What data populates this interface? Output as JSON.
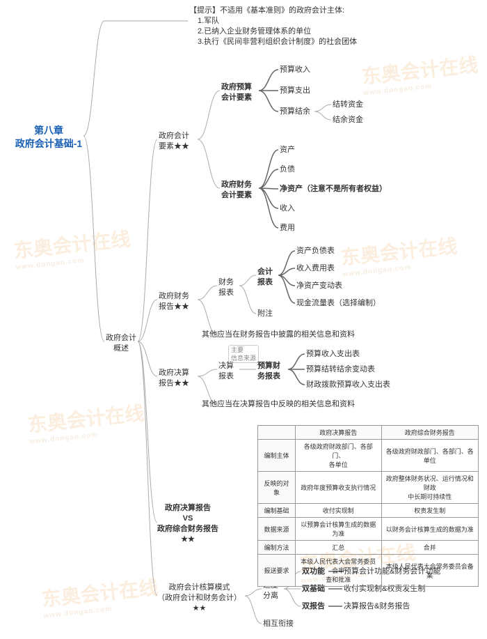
{
  "root": {
    "line1": "第八章",
    "line2": "政府会计基础-1"
  },
  "tip": {
    "head": "【提示】不适用《基本准则》的政府会计主体:",
    "l1": "1.军队",
    "l2": "2.已纳入企业财务管理体系的单位",
    "l3": "3.执行《民间非营利组织会计制度》的社会团体"
  },
  "overview": "政府会计\n概述",
  "elements": {
    "label": "政府会计\n要素★★",
    "budget": {
      "label": "政府预算\n会计要素",
      "items": [
        "预算收入",
        "预算支出",
        "预算结余"
      ],
      "carry": [
        "结转资金",
        "结余资金"
      ]
    },
    "finance": {
      "label": "政府财务\n会计要素",
      "items": [
        "资产",
        "负债",
        "净资产（注意不是所有者权益）",
        "收入",
        "费用"
      ]
    }
  },
  "finreport": {
    "label": "政府财务\n报告★★",
    "sub1": "财务\n报表",
    "acc": {
      "label": "会计\n报表",
      "items": [
        "资产负债表",
        "收入费用表",
        "净资产变动表",
        "现金流量表（选择编制）"
      ]
    },
    "notes": "附注",
    "other": "其他应当在财务报告中披露的相关信息和资料"
  },
  "budreport": {
    "label": "政府决算\n报告★★",
    "sub": "决算\n报表",
    "tag": "主要\n信息来源",
    "core": {
      "label": "预算财\n务报表",
      "items": [
        "预算收入支出表",
        "预算结转结余变动表",
        "财政拨款预算收入支出表"
      ]
    },
    "other": "其他应当在决算报告中反映的相关信息和资料"
  },
  "vs": {
    "label": "政府决算报告\nVS\n政府综合财务报告\n★★"
  },
  "model": {
    "label": "政府会计核算模式\n（政府会计和财务会计）\n★★",
    "moderate": "适度\n分离",
    "threes": [
      {
        "k": "双功能",
        "v": "预算会计功能&财务会计功能"
      },
      {
        "k": "双基础",
        "v": "收付实现制&权责发生制"
      },
      {
        "k": "双报告",
        "v": "决算报告&财务报告"
      }
    ],
    "link": "相互衔接"
  },
  "table": {
    "headers": [
      "",
      "政府决算报告",
      "政府综合财务报告"
    ],
    "rows": [
      [
        "编制主体",
        "各级政府财政部门、各部门、\n各单位",
        "各级政府财政部门、各部门、各单位"
      ],
      [
        "反映的对象",
        "政府年度预算收支执行情况",
        "政府整体财务状况、运行情况和财政\n中长期可持续性"
      ],
      [
        "编制基础",
        "收付实现制",
        "权责发生制"
      ],
      [
        "数据来源",
        "以预算会计核算生成的数据为准",
        "以财务会计核算生成的数据为准"
      ],
      [
        "编制方法",
        "汇总",
        "合并"
      ],
      [
        "报送要求",
        "本级人民代表大会常务委员会审\n查和批准",
        "本级人民代表大会常务委员会备案"
      ]
    ]
  },
  "watermark": {
    "main": "东奥会计在线",
    "sub": "www.dongao.com"
  },
  "colors": {
    "root": "#1a5fb4",
    "line": "#aaaaaa",
    "bold": "#555555"
  }
}
